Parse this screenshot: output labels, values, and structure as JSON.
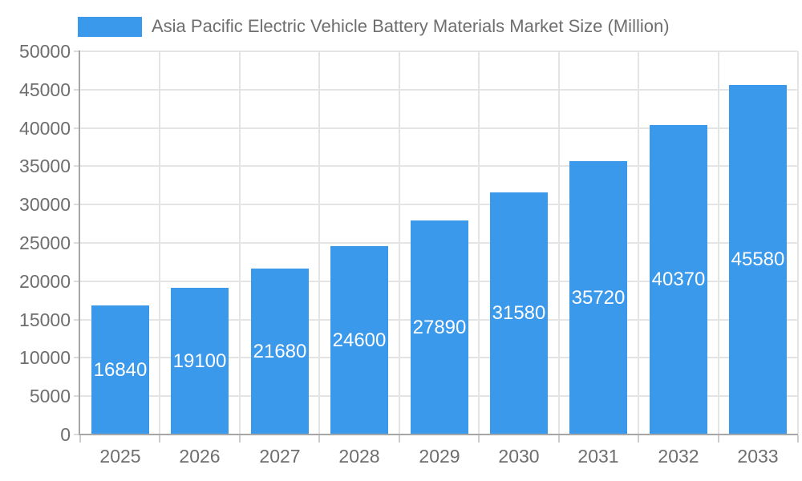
{
  "chart_data": {
    "type": "bar",
    "title": "Asia Pacific Electric Vehicle Battery Materials Market Size (Million)",
    "categories": [
      "2025",
      "2026",
      "2027",
      "2028",
      "2029",
      "2030",
      "2031",
      "2032",
      "2033"
    ],
    "values": [
      16840,
      19100,
      21680,
      24600,
      27890,
      31580,
      35720,
      40370,
      45580
    ],
    "series_name": "Asia Pacific Electric Vehicle Battery Materials Market Size (Million)",
    "xlabel": "",
    "ylabel": "",
    "ylim": [
      0,
      50000
    ],
    "ytick_step": 5000,
    "yticks": [
      0,
      5000,
      10000,
      15000,
      20000,
      25000,
      30000,
      35000,
      40000,
      45000,
      50000
    ],
    "grid": true,
    "legend_position": "top",
    "bar_color": "#3b99ec",
    "bar_label_color": "#ffffff",
    "axis_text_color": "#6e6e6e",
    "gridline_color": "#e4e4e4",
    "axis_line_color": "#a6a6a6"
  }
}
